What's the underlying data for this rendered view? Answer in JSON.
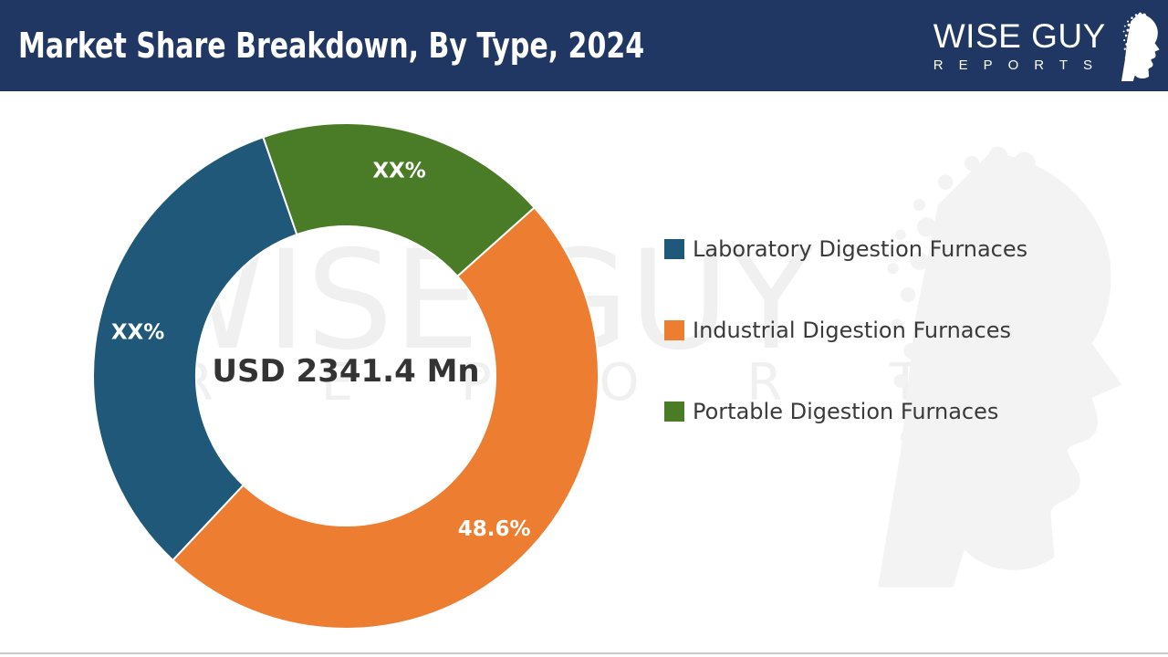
{
  "header": {
    "title": "Market Share Breakdown, By Type, 2024",
    "logo": {
      "line1": "WISE GUY",
      "line2": "REPORTS"
    }
  },
  "watermark": {
    "line1": "WISE GUY",
    "line2": "R E P O R T S"
  },
  "chart_data": {
    "type": "pie",
    "subtype": "donut",
    "title": "Market Share Breakdown, By Type, 2024",
    "center_label": "USD 2341.4 Mn",
    "legend_position": "right",
    "start_angle_deg": 109.1,
    "direction": "counterclockwise",
    "slices": [
      {
        "name": "Laboratory Digestion Furnaces",
        "value_pct": 32.7,
        "display_label": "XX%",
        "color": "#1f5878"
      },
      {
        "name": "Industrial Digestion Furnaces",
        "value_pct": 48.6,
        "display_label": "48.6%",
        "color": "#ed7d31"
      },
      {
        "name": "Portable Digestion Furnaces",
        "value_pct": 18.7,
        "display_label": "XX%",
        "color": "#4a7c28"
      }
    ]
  },
  "colors": {
    "header_bg": "#203763",
    "title_text": "#ffffff",
    "center_text": "#333333",
    "legend_text": "#3a3a3a",
    "slice_label_text": "#ffffff",
    "slice_separator": "#ffffff",
    "watermark": "#f0f0f0",
    "bottom_line": "#cacaca"
  }
}
